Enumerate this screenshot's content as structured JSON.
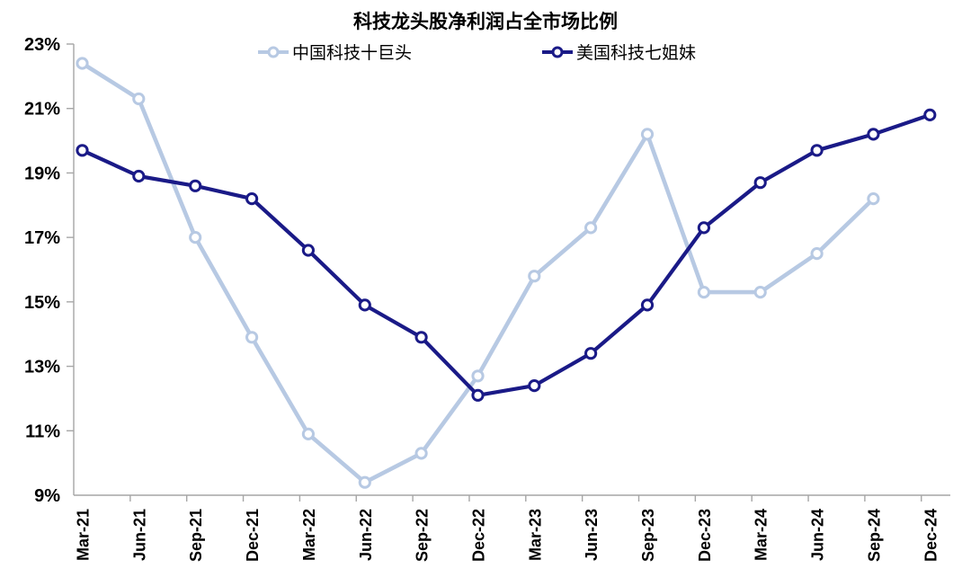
{
  "title": "科技龙头股净利润占全市场比例",
  "chart_data": {
    "type": "line",
    "title": "科技龙头股净利润占全市场比例",
    "xlabel": "",
    "ylabel": "",
    "categories": [
      "Mar-21",
      "Jun-21",
      "Sep-21",
      "Dec-21",
      "Mar-22",
      "Jun-22",
      "Sep-22",
      "Dec-22",
      "Mar-23",
      "Jun-23",
      "Sep-23",
      "Dec-23",
      "Mar-24",
      "Jun-24",
      "Sep-24",
      "Dec-24"
    ],
    "series": [
      {
        "name": "中国科技十巨头",
        "key": "china-top10",
        "color": "#B7C9E3",
        "marker": "open-circle",
        "values": [
          22.4,
          21.3,
          17.0,
          13.9,
          10.9,
          9.4,
          10.3,
          12.7,
          15.8,
          17.3,
          20.2,
          15.3,
          15.3,
          16.5,
          18.2,
          null
        ]
      },
      {
        "name": "美国科技七姐妹",
        "key": "us-mag7",
        "color": "#1A1A87",
        "marker": "open-circle",
        "values": [
          19.7,
          18.9,
          18.6,
          18.2,
          16.6,
          14.9,
          13.9,
          12.1,
          12.4,
          13.4,
          14.9,
          17.3,
          18.7,
          19.7,
          20.2,
          20.8
        ]
      }
    ],
    "ylim": [
      9,
      23
    ],
    "ytick_step": 2,
    "ytick_suffix": "%",
    "ytick_labels": [
      "9%",
      "11%",
      "13%",
      "15%",
      "17%",
      "19%",
      "21%",
      "23%"
    ],
    "grid": false,
    "legend_position": "top",
    "axis_color": "#A6A6A6"
  }
}
